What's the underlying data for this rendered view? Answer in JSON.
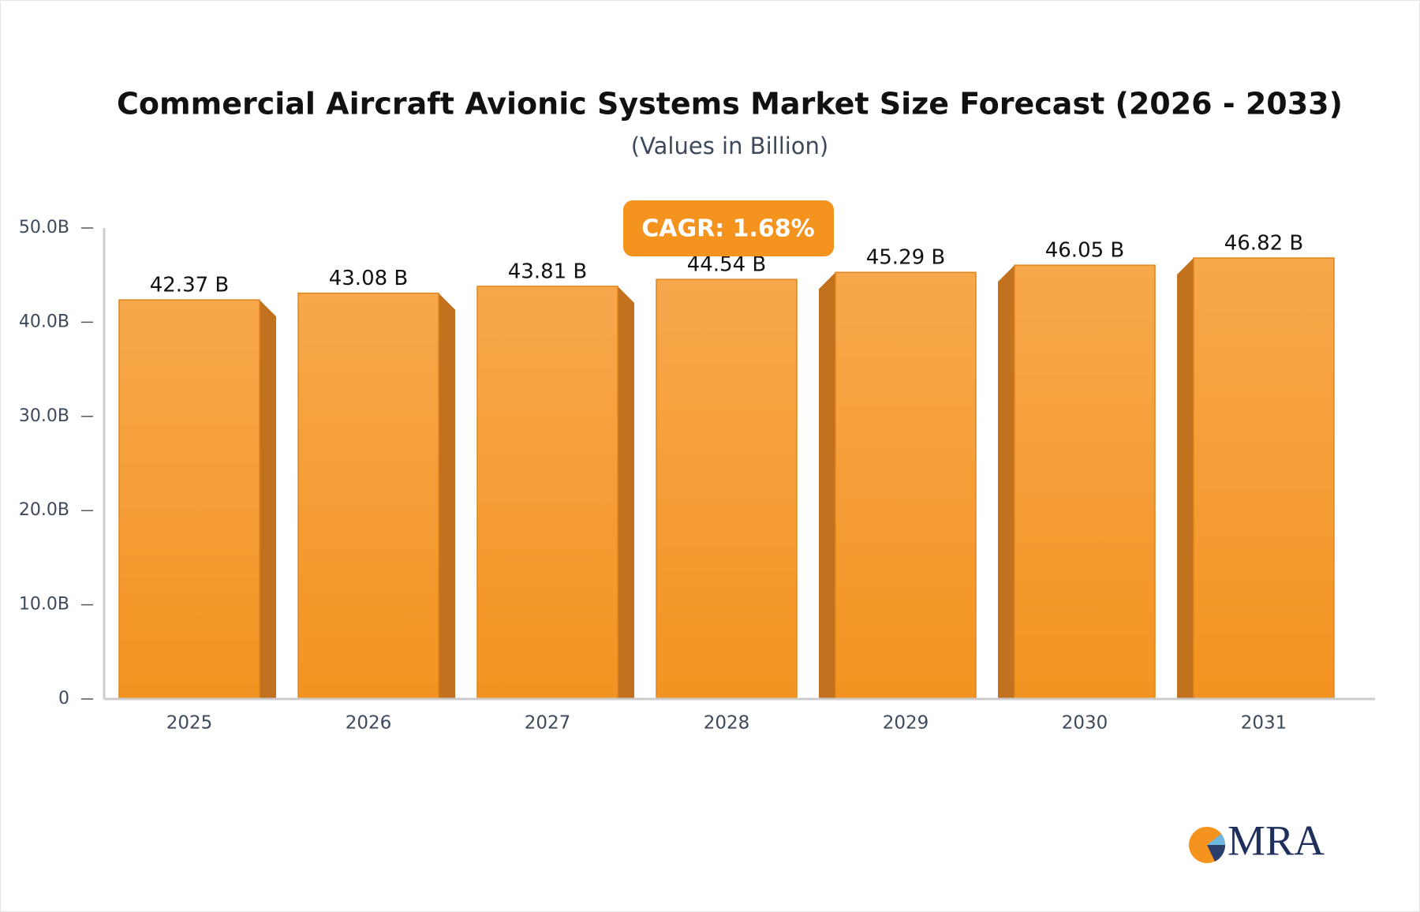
{
  "chart_data": {
    "type": "bar",
    "title": "Commercial Aircraft Avionic Systems Market Size Forecast (2026 - 2033)",
    "subtitle": "(Values in Billion)",
    "annotation": "CAGR: 1.68%",
    "logo_text": "MRA",
    "categories": [
      "2025",
      "2026",
      "2027",
      "2028",
      "2029",
      "2030",
      "2031"
    ],
    "values": [
      42.37,
      43.08,
      43.81,
      44.54,
      45.29,
      46.05,
      46.82
    ],
    "value_labels": [
      "42.37 B",
      "43.08 B",
      "43.81 B",
      "44.54 B",
      "45.29 B",
      "46.05 B",
      "46.82 B"
    ],
    "color": "#f59c33",
    "ylim": [
      0,
      50
    ],
    "yticks": [
      0,
      {
        "value": 10,
        "label": "10.0B"
      },
      {
        "value": 20,
        "label": "20.0B"
      },
      {
        "value": 30,
        "label": "30.0B"
      },
      {
        "value": 40,
        "label": "40.0B"
      },
      {
        "value": 50,
        "label": "50.0B"
      }
    ]
  }
}
